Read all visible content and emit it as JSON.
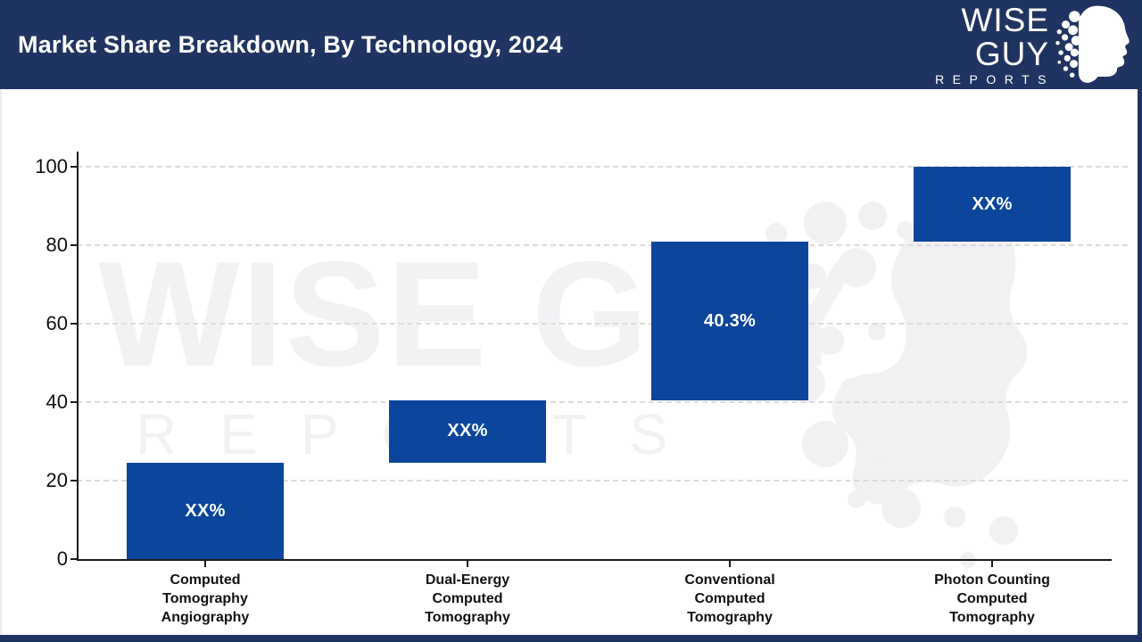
{
  "header": {
    "title": "Market Share Breakdown, By Technology, 2024",
    "logo_line1": "WISE GUY",
    "logo_line2": "REPORTS"
  },
  "watermark": {
    "line1": "WISE GUY",
    "line2": "REPORTS"
  },
  "chart_data": {
    "type": "bar",
    "subtype": "waterfall",
    "title": "Market Share Breakdown, By Technology, 2024",
    "categories": [
      "Computed\nTomography\nAngiography",
      "Dual-Energy\nComputed\nTomography",
      "Conventional\nComputed\nTomography",
      "Photon Counting\nComputed\nTomography"
    ],
    "segments": [
      {
        "start": 0,
        "end": 24.5,
        "value": 24.5,
        "label": "XX%"
      },
      {
        "start": 24.5,
        "end": 40.5,
        "value": 16.0,
        "label": "XX%"
      },
      {
        "start": 40.5,
        "end": 80.8,
        "value": 40.3,
        "label": "40.3%"
      },
      {
        "start": 80.8,
        "end": 100,
        "value": 19.2,
        "label": "XX%"
      }
    ],
    "xlabel": "",
    "ylabel": "",
    "ylim": [
      0,
      100
    ],
    "yticks": [
      0,
      20,
      40,
      60,
      80,
      100
    ],
    "grid": "horizontal-dashed",
    "legend": "none",
    "bar_color": "#0b459c",
    "bar_label_color": "#ffffff"
  },
  "colors": {
    "header_bg": "#203461",
    "bar": "#0b459c",
    "gridline": "#dbdbdb",
    "axis": "#1a1a1a",
    "watermark": "#f2f2f5",
    "background": "#ffffff"
  }
}
